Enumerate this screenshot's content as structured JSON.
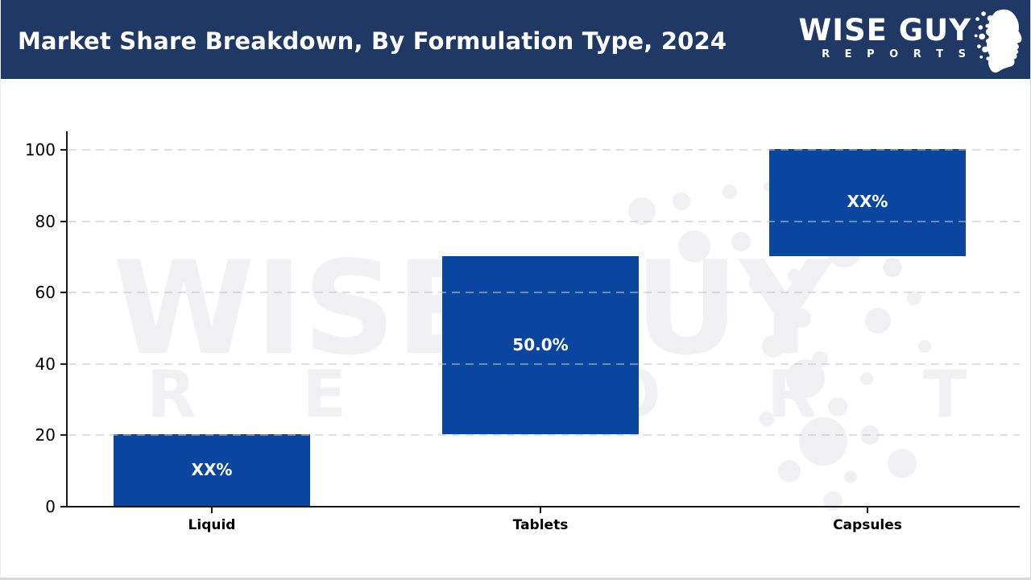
{
  "header": {
    "title": "Market Share Breakdown, By Formulation Type, 2024",
    "logo": {
      "name": "WISE GUY",
      "subtitle": "R E P O R T S"
    }
  },
  "watermark": {
    "name": "WISE GUY",
    "subtitle": "R E P O R T S"
  },
  "colors": {
    "header_bg": "#1f3864",
    "bar": "#0a45a0",
    "bar_label_text": "#ffffff",
    "grid": "#dcdcdc",
    "axis": "#1a1a1a",
    "watermark": "#f1f1f4"
  },
  "chart_data": {
    "type": "bar",
    "subtype": "floating-segment (waterfall-style) column chart",
    "title": "Market Share Breakdown, By Formulation Type, 2024",
    "categories": [
      "Liquid",
      "Tablets",
      "Capsules"
    ],
    "segments": [
      {
        "category": "Liquid",
        "start": 0,
        "end": 20,
        "label": "XX%"
      },
      {
        "category": "Tablets",
        "start": 20,
        "end": 70,
        "label": "50.0%"
      },
      {
        "category": "Capsules",
        "start": 70,
        "end": 100,
        "label": "XX%"
      }
    ],
    "yticks": [
      0,
      20,
      40,
      60,
      80,
      100
    ],
    "ylim": [
      0,
      105
    ],
    "xlabel": "",
    "ylabel": "",
    "grid": "dashed horizontal gridlines",
    "legend": "none"
  }
}
